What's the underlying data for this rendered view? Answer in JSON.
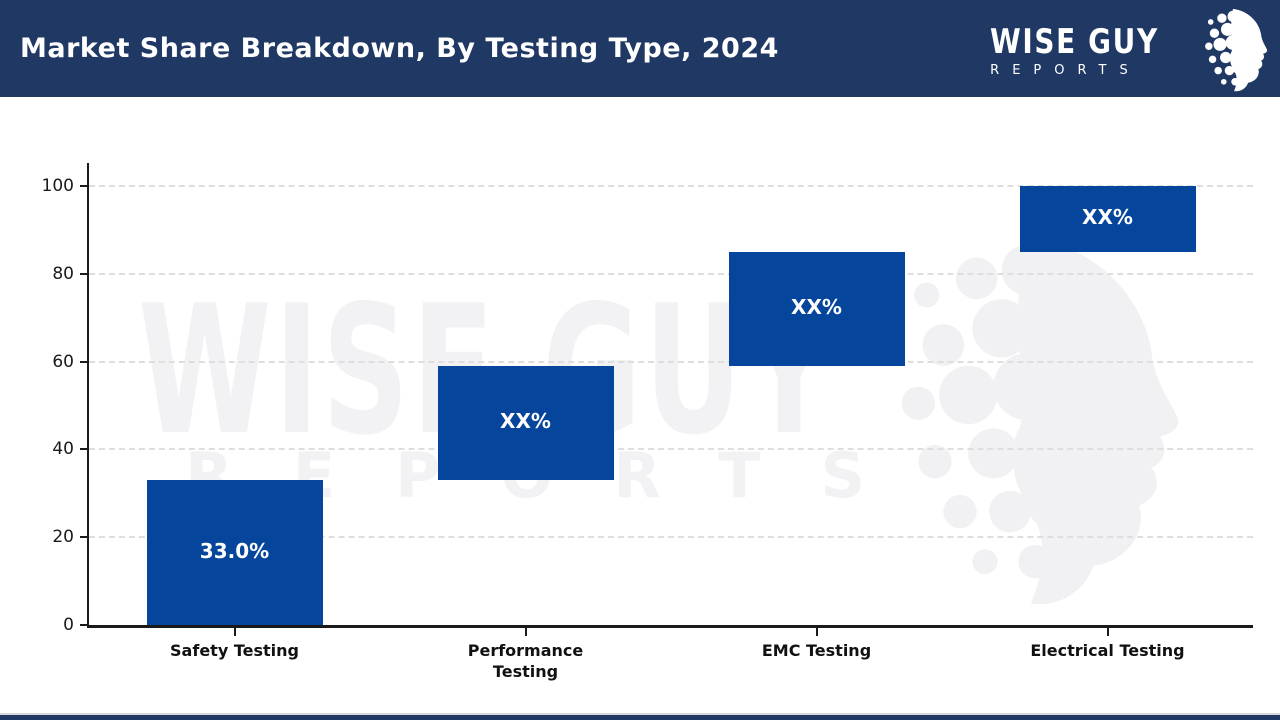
{
  "header": {
    "title": "Market Share Breakdown, By Testing Type, 2024",
    "logo_line1": "WISE GUY",
    "logo_line2": "REPORTS",
    "bg_color": "#203864",
    "text_color": "#ffffff"
  },
  "watermark": {
    "line1": "WISE GUY",
    "line2": "REPORTS"
  },
  "chart_data": {
    "type": "bar",
    "subtype": "waterfall",
    "title": "Market Share Breakdown, By Testing Type, 2024",
    "categories": [
      "Safety Testing",
      "Performance\nTesting",
      "EMC Testing",
      "Electrical Testing"
    ],
    "series": [
      {
        "name": "Market Share (%)",
        "segments": [
          {
            "category": "Safety Testing",
            "label": "33.0%",
            "start": 0,
            "end": 33,
            "value_estimate": 33
          },
          {
            "category": "Performance Testing",
            "label": "XX%",
            "start": 33,
            "end": 59,
            "value_estimate": 26
          },
          {
            "category": "EMC Testing",
            "label": "XX%",
            "start": 59,
            "end": 85,
            "value_estimate": 26
          },
          {
            "category": "Electrical Testing",
            "label": "XX%",
            "start": 85,
            "end": 100,
            "value_estimate": 15
          }
        ]
      }
    ],
    "xlabel": "",
    "ylabel": "",
    "ylim": [
      0,
      105
    ],
    "yticks": [
      0,
      20,
      40,
      60,
      80,
      100
    ],
    "grid": "horizontal-dashed",
    "legend": "none",
    "bar_color": "#05459b",
    "bar_label_color": "#ffffff",
    "axis_color": "#1a1a1a",
    "gridline_color": "#dedede"
  }
}
